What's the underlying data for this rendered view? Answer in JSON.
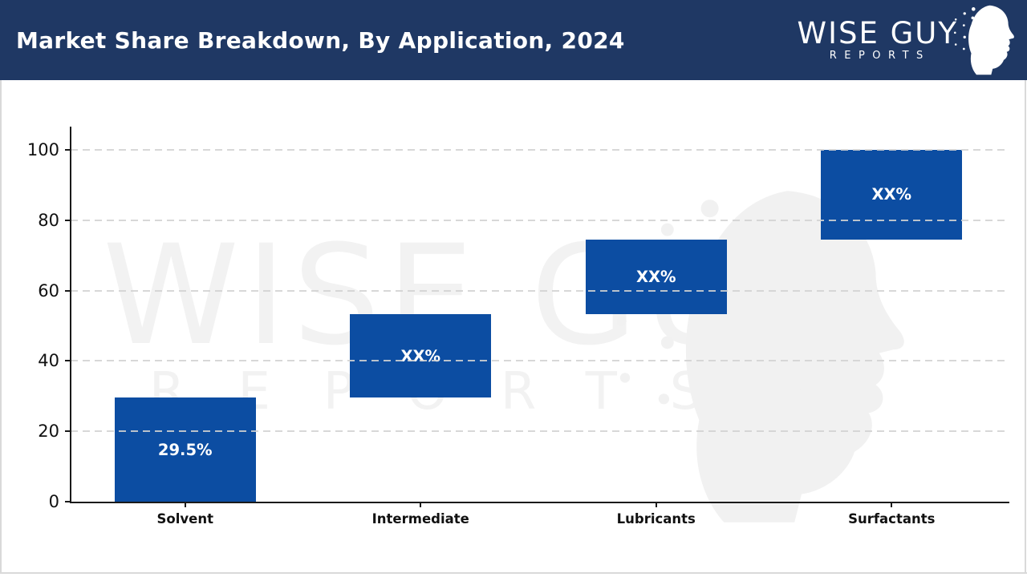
{
  "header": {
    "title": "Market Share Breakdown, By Application, 2024",
    "logo": {
      "line1": "WISE GUY",
      "line2": "REPORTS"
    }
  },
  "watermark": {
    "line1": "WISE GUY",
    "line2": "REPORTS"
  },
  "colors": {
    "header_bg": "#1f3864",
    "bar": "#0c4da2",
    "bar_label": "#ffffff",
    "grid": "#d2d2d2",
    "axis": "#1a1a1a",
    "watermark": "#f2f2f2",
    "title_text": "#ffffff"
  },
  "chart_data": {
    "type": "bar",
    "subtype": "waterfall",
    "title": "Market Share Breakdown, By Application, 2024",
    "categories": [
      "Solvent",
      "Intermediate",
      "Lubricants",
      "Surfactants"
    ],
    "segments": [
      {
        "category": "Solvent",
        "start": 0,
        "end": 29.5,
        "label": "29.5%"
      },
      {
        "category": "Intermediate",
        "start": 29.5,
        "end": 53.3,
        "label": "XX%"
      },
      {
        "category": "Lubricants",
        "start": 53.3,
        "end": 74.5,
        "label": "XX%"
      },
      {
        "category": "Surfactants",
        "start": 74.5,
        "end": 100,
        "label": "XX%"
      }
    ],
    "yticks": [
      0,
      20,
      40,
      60,
      80,
      100
    ],
    "ylim": [
      0,
      100
    ],
    "xlabel": "",
    "ylabel": "",
    "grid": "horizontal-dashed",
    "legend": "none"
  }
}
